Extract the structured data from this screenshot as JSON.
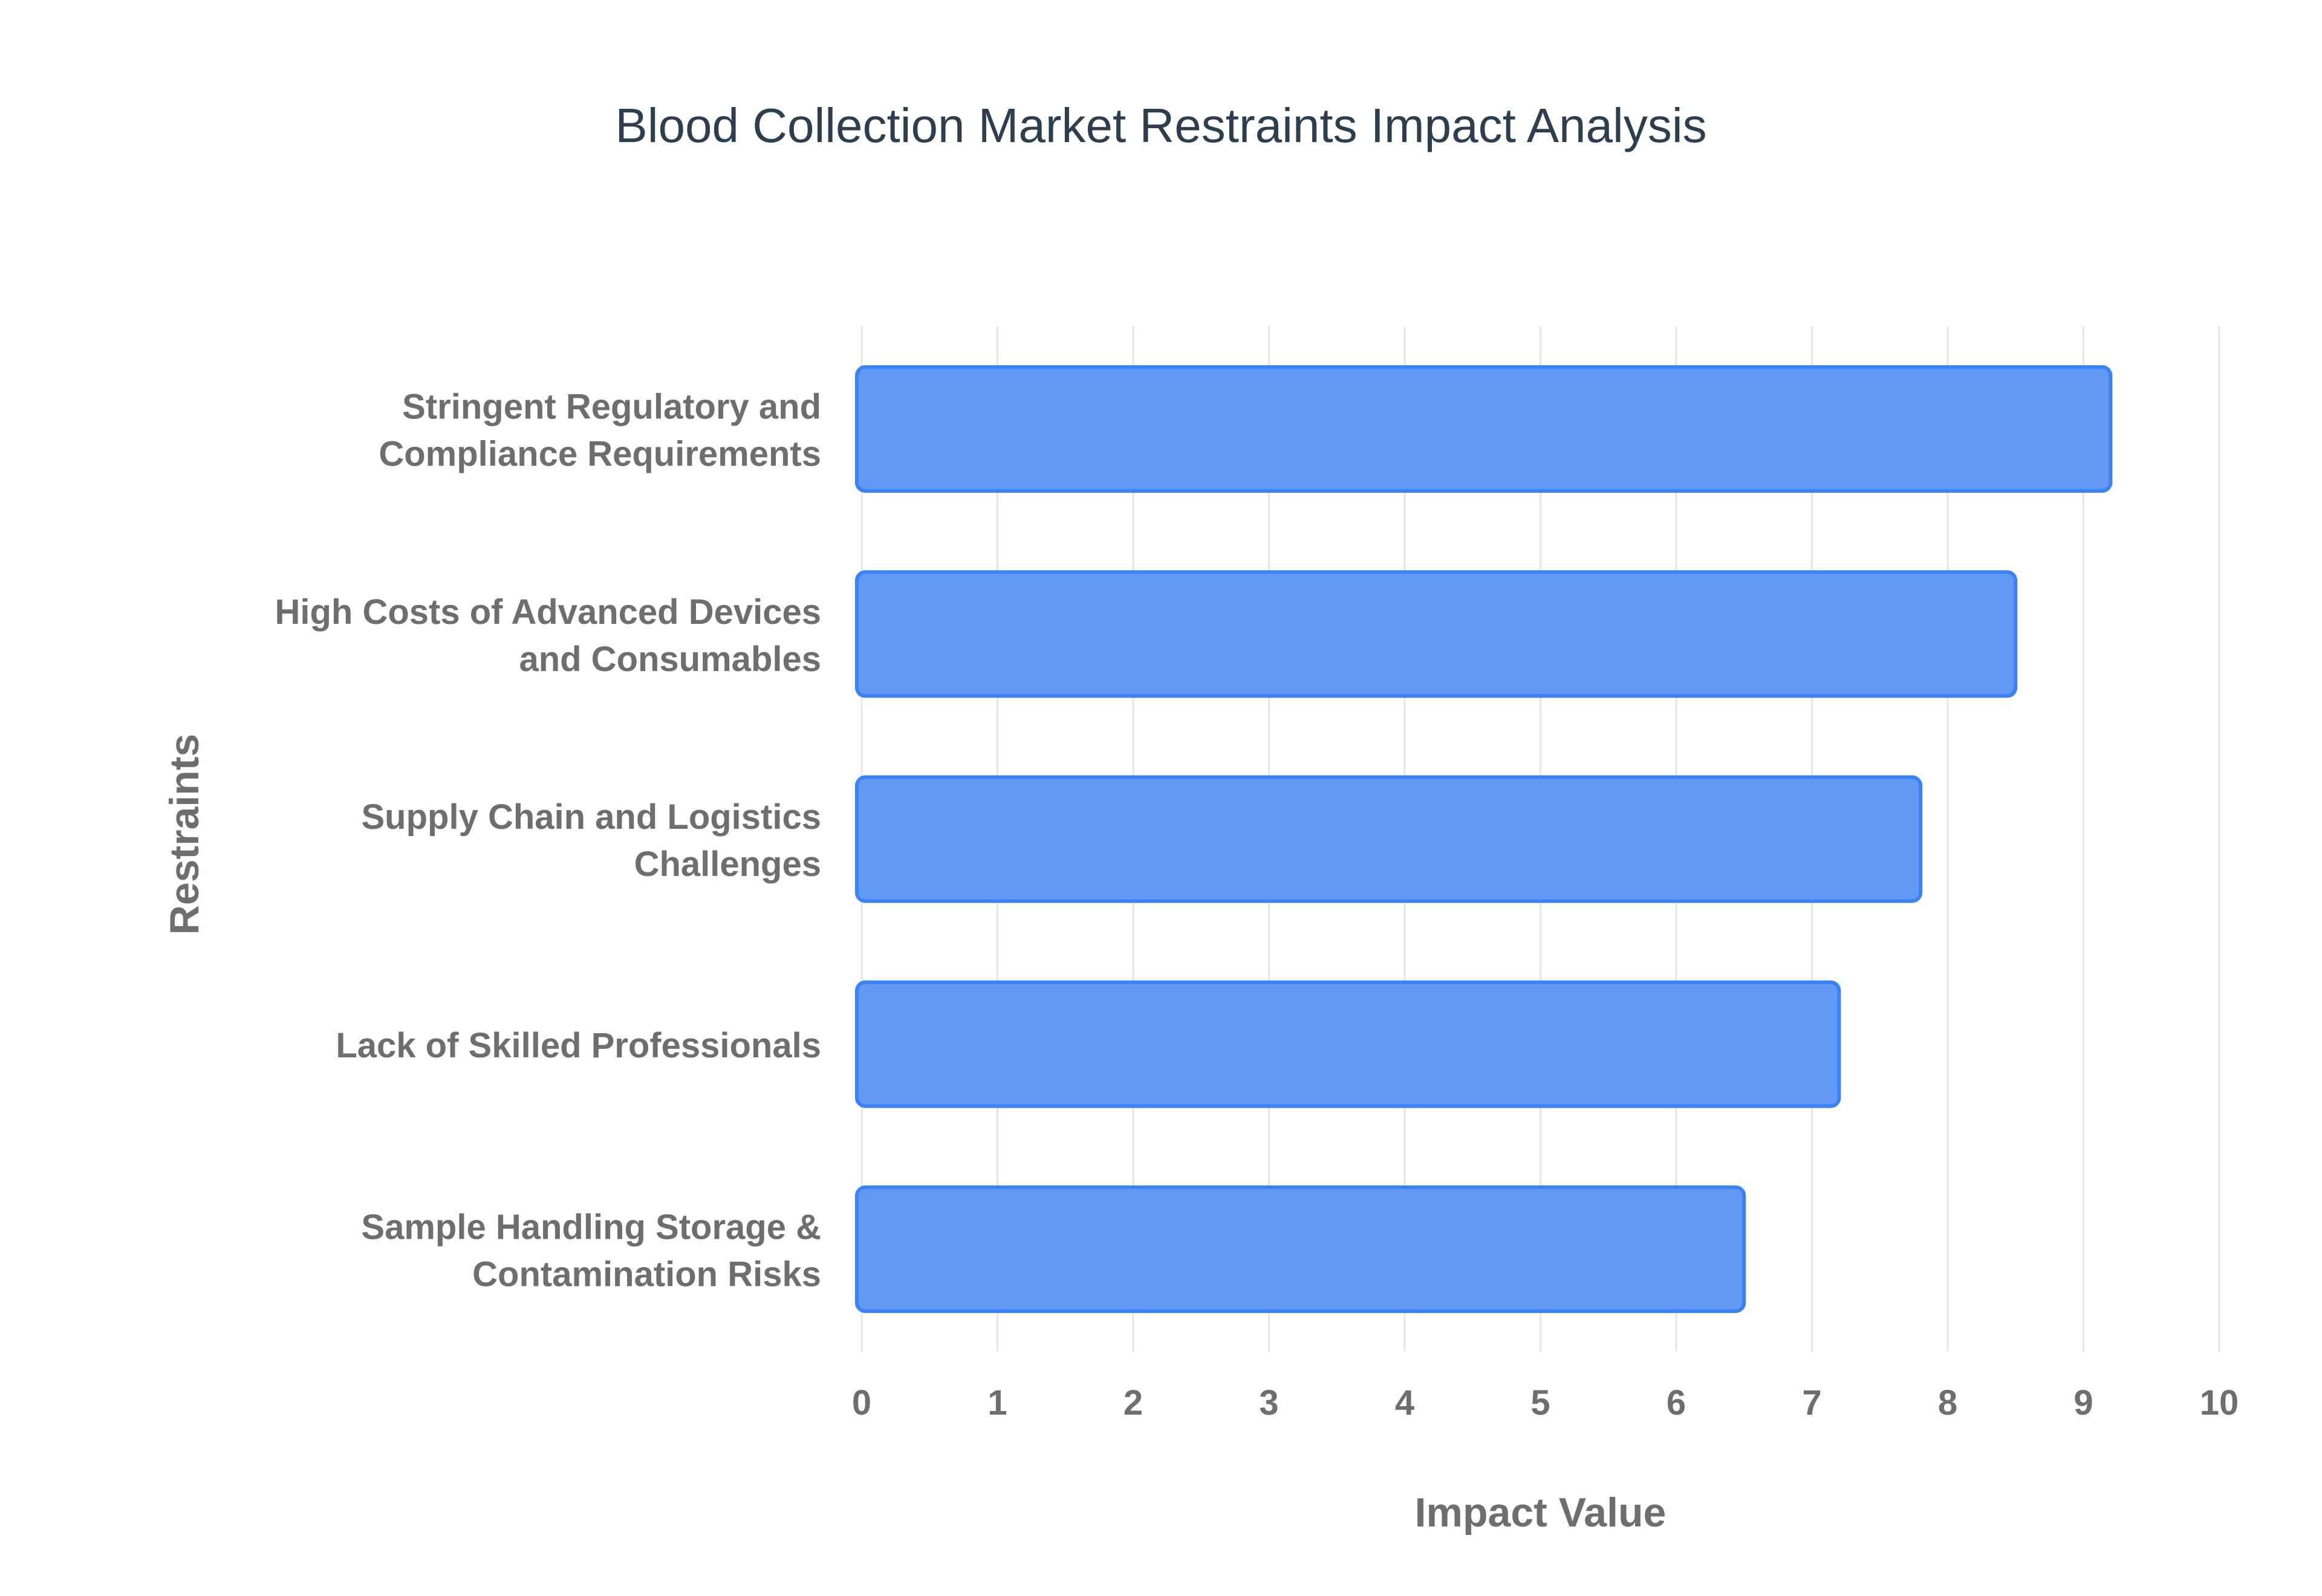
{
  "colors": {
    "bar_fill": "#6299f5",
    "bar_stroke": "#3b82f6",
    "grid": "#e5e5e5",
    "tick_text": "#6e6e6e",
    "axis_title_text": "#6e6e6e",
    "title_text": "#2c3e50",
    "background": "#ffffff"
  },
  "chart_data": {
    "type": "bar",
    "orientation": "horizontal",
    "title": "Blood Collection Market Restraints Impact Analysis",
    "xlabel": "Impact Value",
    "ylabel": "Restraints",
    "xlim": [
      0,
      10
    ],
    "x_ticks": [
      "0",
      "1",
      "2",
      "3",
      "4",
      "5",
      "6",
      "7",
      "8",
      "9",
      "10"
    ],
    "grid": true,
    "legend": "none",
    "categories": [
      [
        "Stringent Regulatory and",
        "Compliance Requirements"
      ],
      [
        "High Costs of Advanced Devices",
        "and Consumables"
      ],
      [
        "Supply Chain and Logistics",
        "Challenges"
      ],
      [
        "Lack of Skilled Professionals"
      ],
      [
        "Sample Handling Storage &",
        "Contamination Risks"
      ]
    ],
    "values": [
      9.2,
      8.5,
      7.8,
      7.2,
      6.5
    ]
  }
}
